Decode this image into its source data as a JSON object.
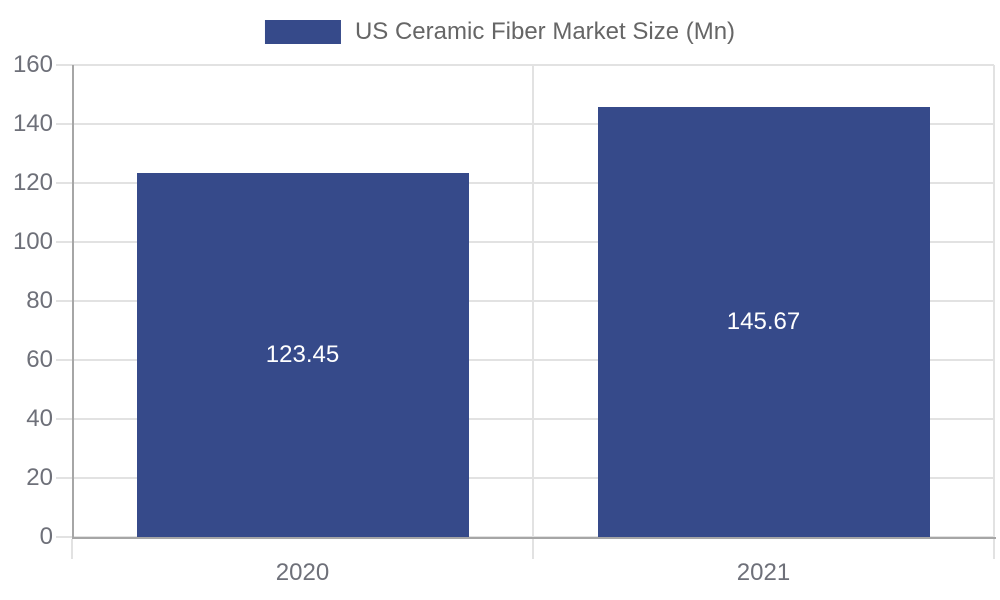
{
  "chart_data": {
    "type": "bar",
    "title": "US Ceramic Fiber Market Size (Mn)",
    "categories": [
      "2020",
      "2021"
    ],
    "values": [
      123.45,
      145.67
    ],
    "series": [
      {
        "name": "US Ceramic Fiber Market Size (Mn)",
        "values": [
          123.45,
          145.67
        ]
      }
    ],
    "y_ticks": [
      0,
      20,
      40,
      60,
      80,
      100,
      120,
      140,
      160
    ],
    "ylim": [
      0,
      160
    ],
    "xlabel": "",
    "ylabel": "",
    "grid": true,
    "legend_position": "top-center",
    "value_labels_inside_bars": true,
    "colors": {
      "bar": "#364a8a",
      "value_label": "#ffffff",
      "axis_line": "#a6a6a6",
      "grid_line": "#e2e2e2",
      "tick_label": "#6e7079",
      "legend_text": "#666666",
      "background": "#ffffff"
    }
  }
}
